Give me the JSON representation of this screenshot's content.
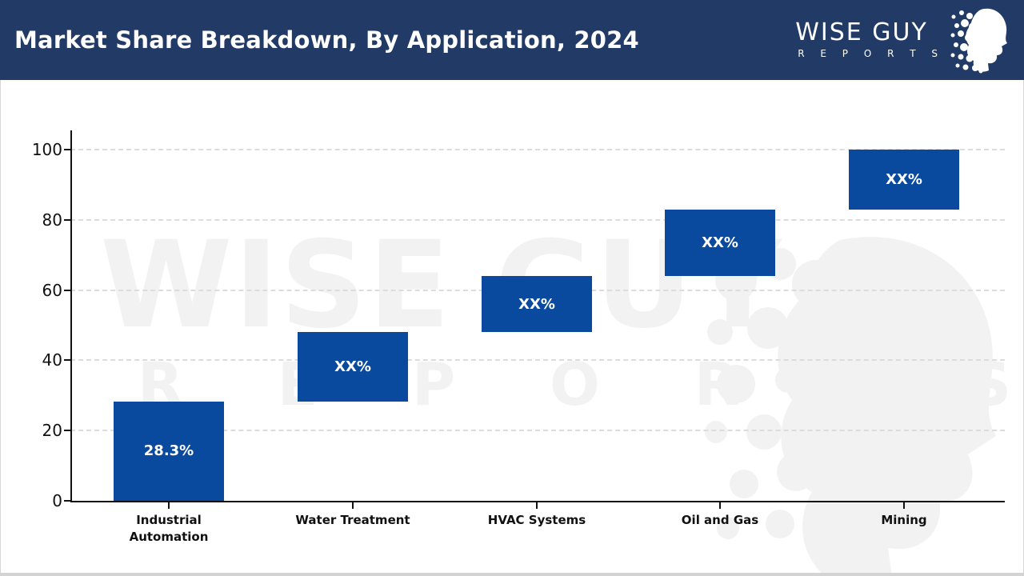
{
  "header": {
    "title": "Market Share Breakdown, By Application, 2024",
    "logo": {
      "name": "WISE GUY",
      "tagline": "R E P O R T S"
    }
  },
  "watermark": {
    "line1": "WISE GUY",
    "line2": "R E P O R T S"
  },
  "colors": {
    "header_bg": "#213a66",
    "bar": "#0a4a9e",
    "bar_label": "#ffffff",
    "axis": "#111111",
    "grid": "#dcdcdc",
    "watermark": "#f2f2f2",
    "footer_strip": "#d3d3d3"
  },
  "chart_data": {
    "type": "bar",
    "subtype": "waterfall",
    "title": "Market Share Breakdown, By Application, 2024",
    "xlabel": "",
    "ylabel": "",
    "ylim": [
      0,
      105
    ],
    "yticks": [
      0,
      20,
      40,
      60,
      80,
      100
    ],
    "grid": "horizontal-dashed",
    "legend": "none",
    "categories": [
      "Industrial Automation",
      "Water Treatment",
      "HVAC Systems",
      "Oil and Gas",
      "Mining"
    ],
    "segments": [
      {
        "category": "Industrial Automation",
        "start": 0,
        "end": 28.3,
        "label": "28.3%"
      },
      {
        "category": "Water Treatment",
        "start": 28.3,
        "end": 48,
        "label": "XX%"
      },
      {
        "category": "HVAC Systems",
        "start": 48,
        "end": 64,
        "label": "XX%"
      },
      {
        "category": "Oil and Gas",
        "start": 64,
        "end": 83,
        "label": "XX%"
      },
      {
        "category": "Mining",
        "start": 83,
        "end": 100,
        "label": "XX%"
      }
    ]
  }
}
